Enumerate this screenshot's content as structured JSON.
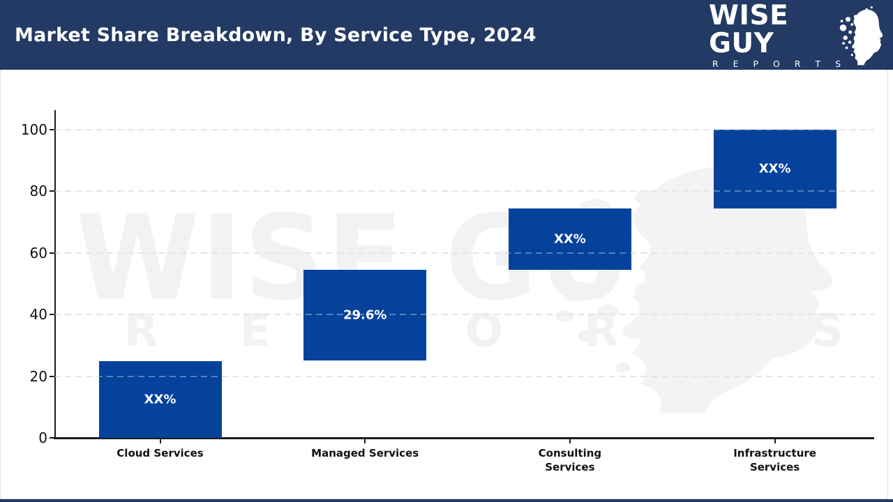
{
  "header": {
    "title": "Market Share Breakdown, By Service Type, 2024",
    "logo": {
      "name_top": "WISE GUY",
      "name_bottom": "R E P O R T S"
    }
  },
  "watermark": {
    "text_top": "WISE GUY",
    "text_bottom": "R E P O R T S"
  },
  "colors": {
    "header_bg": "#223a64",
    "bar": "#04429c",
    "grid": "#d8d8d8",
    "axis": "#1c1c1c",
    "watermark": "#f2f2f3"
  },
  "chart_data": {
    "type": "bar",
    "variant": "floating-segment-waterfall",
    "title": "Market Share Breakdown, By Service Type, 2024",
    "categories": [
      "Cloud Services",
      "Managed Services",
      "Consulting\nServices",
      "Infrastructure\nServices"
    ],
    "segments": [
      {
        "category": "Cloud Services",
        "start": 0,
        "end": 25.0,
        "label": "XX%"
      },
      {
        "category": "Managed Services",
        "start": 25.0,
        "end": 54.6,
        "label": "29.6%"
      },
      {
        "category": "Consulting Services",
        "start": 54.6,
        "end": 74.5,
        "label": "XX%"
      },
      {
        "category": "Infrastructure Services",
        "start": 74.5,
        "end": 100,
        "label": "XX%"
      }
    ],
    "xlabel": "",
    "ylabel": "",
    "ylim": [
      0,
      100
    ],
    "yticks": [
      0,
      20,
      40,
      60,
      80,
      100
    ],
    "grid": "dashed-horizontal",
    "legend": "none",
    "bar_color": "#04429c",
    "bar_label_color": "#ffffff"
  }
}
